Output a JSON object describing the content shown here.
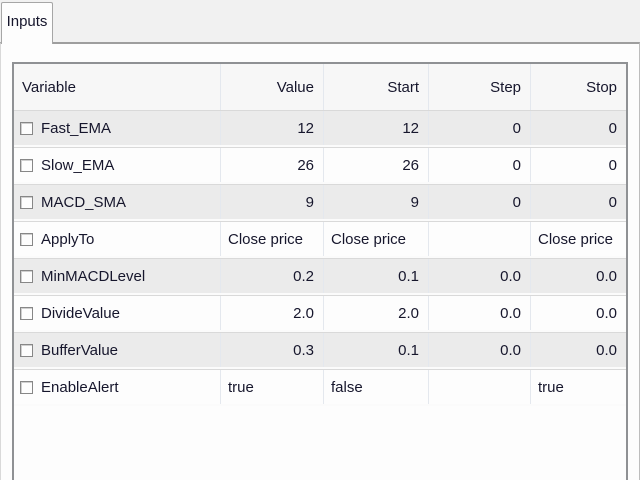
{
  "window": {
    "tab_label": "Inputs"
  },
  "colors": {
    "text": "#16162c",
    "row_alt_bg": "#ebebeb",
    "row_bg": "#fdfdfd",
    "table_border": "#8f9194",
    "grid_line": "#e4e8ee"
  },
  "table": {
    "headers": {
      "variable": "Variable",
      "value": "Value",
      "start": "Start",
      "step": "Step",
      "stop": "Stop"
    },
    "rows": [
      {
        "variable": "Fast_EMA",
        "value": "12",
        "start": "12",
        "step": "0",
        "stop": "0",
        "checked": false
      },
      {
        "variable": "Slow_EMA",
        "value": "26",
        "start": "26",
        "step": "0",
        "stop": "0",
        "checked": false
      },
      {
        "variable": "MACD_SMA",
        "value": "9",
        "start": "9",
        "step": "0",
        "stop": "0",
        "checked": false
      },
      {
        "variable": "ApplyTo",
        "value": "Close price",
        "start": "Close price",
        "step": "",
        "stop": "Close price",
        "checked": false
      },
      {
        "variable": "MinMACDLevel",
        "value": "0.2",
        "start": "0.1",
        "step": "0.0",
        "stop": "0.0",
        "checked": false
      },
      {
        "variable": "DivideValue",
        "value": "2.0",
        "start": "2.0",
        "step": "0.0",
        "stop": "0.0",
        "checked": false
      },
      {
        "variable": "BufferValue",
        "value": "0.3",
        "start": "0.1",
        "step": "0.0",
        "stop": "0.0",
        "checked": false
      },
      {
        "variable": "EnableAlert",
        "value": "true",
        "start": "false",
        "step": "",
        "stop": "true",
        "checked": false
      }
    ]
  }
}
